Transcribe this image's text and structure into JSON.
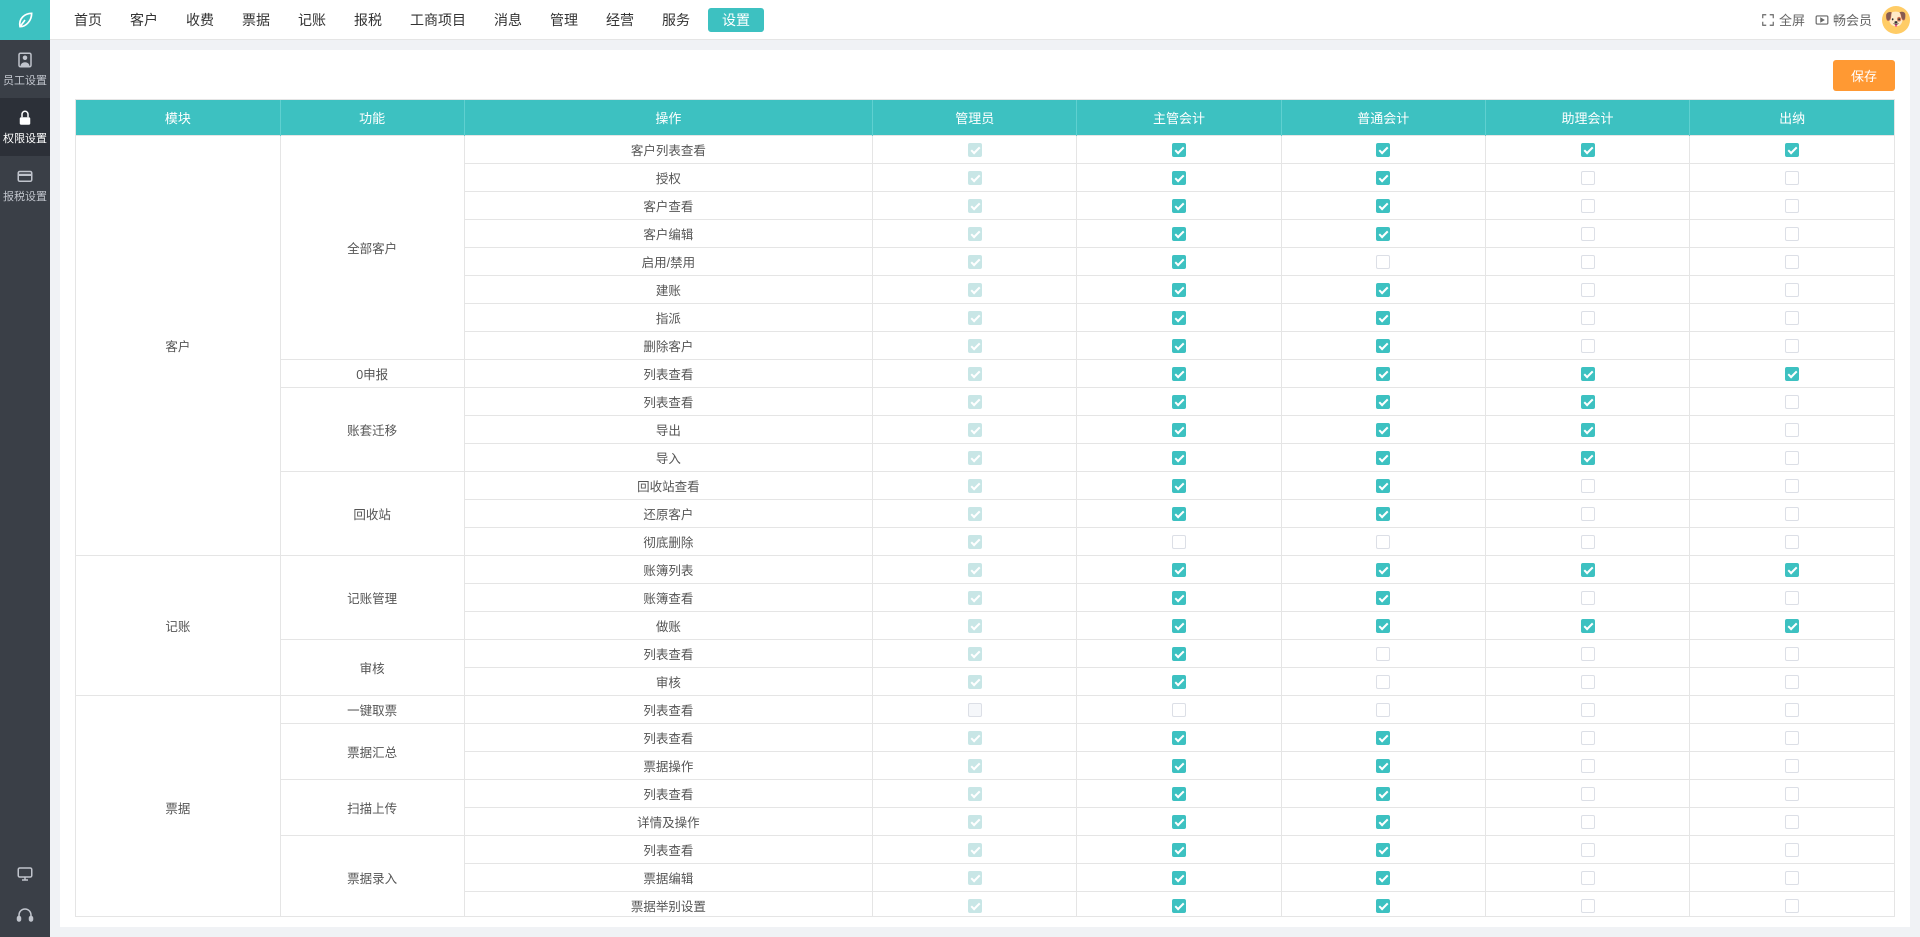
{
  "top_nav": {
    "menu": [
      "首页",
      "客户",
      "收费",
      "票据",
      "记账",
      "报税",
      "工商项目",
      "消息",
      "管理",
      "经营",
      "服务",
      "设置"
    ],
    "active_index": 11,
    "fullscreen": "全屏",
    "member": "畅会员"
  },
  "sidebar": {
    "items": [
      {
        "label": "员工设置",
        "icon": "user"
      },
      {
        "label": "权限设置",
        "icon": "lock"
      },
      {
        "label": "报税设置",
        "icon": "card"
      }
    ],
    "active_index": 1
  },
  "toolbar": {
    "save": "保存"
  },
  "table": {
    "headers": [
      "模块",
      "功能",
      "操作",
      "管理员",
      "主管会计",
      "普通会计",
      "助理会计",
      "出纳"
    ],
    "modules": [
      {
        "name": "客户",
        "funcs": [
          {
            "name": "全部客户",
            "ops": [
              {
                "name": "客户列表查看",
                "roles": [
                  "cd",
                  "c",
                  "c",
                  "c",
                  "c"
                ]
              },
              {
                "name": "授权",
                "roles": [
                  "cd",
                  "c",
                  "c",
                  "e",
                  "e"
                ]
              },
              {
                "name": "客户查看",
                "roles": [
                  "cd",
                  "c",
                  "c",
                  "e",
                  "e"
                ]
              },
              {
                "name": "客户编辑",
                "roles": [
                  "cd",
                  "c",
                  "c",
                  "e",
                  "e"
                ]
              },
              {
                "name": "启用/禁用",
                "roles": [
                  "cd",
                  "c",
                  "e",
                  "e",
                  "e"
                ]
              },
              {
                "name": "建账",
                "roles": [
                  "cd",
                  "c",
                  "c",
                  "e",
                  "e"
                ]
              },
              {
                "name": "指派",
                "roles": [
                  "cd",
                  "c",
                  "c",
                  "e",
                  "e"
                ]
              },
              {
                "name": "删除客户",
                "roles": [
                  "cd",
                  "c",
                  "c",
                  "e",
                  "e"
                ]
              }
            ]
          },
          {
            "name": "0申报",
            "ops": [
              {
                "name": "列表查看",
                "roles": [
                  "cd",
                  "c",
                  "c",
                  "c",
                  "c"
                ]
              }
            ]
          },
          {
            "name": "账套迁移",
            "ops": [
              {
                "name": "列表查看",
                "roles": [
                  "cd",
                  "c",
                  "c",
                  "c",
                  "e"
                ]
              },
              {
                "name": "导出",
                "roles": [
                  "cd",
                  "c",
                  "c",
                  "c",
                  "e"
                ]
              },
              {
                "name": "导入",
                "roles": [
                  "cd",
                  "c",
                  "c",
                  "c",
                  "e"
                ]
              }
            ]
          },
          {
            "name": "回收站",
            "ops": [
              {
                "name": "回收站查看",
                "roles": [
                  "cd",
                  "c",
                  "c",
                  "e",
                  "e"
                ]
              },
              {
                "name": "还原客户",
                "roles": [
                  "cd",
                  "c",
                  "c",
                  "e",
                  "e"
                ]
              },
              {
                "name": "彻底删除",
                "roles": [
                  "cd",
                  "e",
                  "e",
                  "e",
                  "e"
                ]
              }
            ]
          }
        ]
      },
      {
        "name": "记账",
        "funcs": [
          {
            "name": "记账管理",
            "ops": [
              {
                "name": "账簿列表",
                "roles": [
                  "cd",
                  "c",
                  "c",
                  "c",
                  "c"
                ]
              },
              {
                "name": "账簿查看",
                "roles": [
                  "cd",
                  "c",
                  "c",
                  "e",
                  "e"
                ]
              },
              {
                "name": "做账",
                "roles": [
                  "cd",
                  "c",
                  "c",
                  "c",
                  "c"
                ]
              }
            ]
          },
          {
            "name": "审核",
            "ops": [
              {
                "name": "列表查看",
                "roles": [
                  "cd",
                  "c",
                  "e",
                  "e",
                  "e"
                ]
              },
              {
                "name": "审核",
                "roles": [
                  "cd",
                  "c",
                  "e",
                  "e",
                  "e"
                ]
              }
            ]
          }
        ]
      },
      {
        "name": "票据",
        "funcs": [
          {
            "name": "一键取票",
            "ops": [
              {
                "name": "列表查看",
                "roles": [
                  "ed",
                  "e",
                  "e",
                  "e",
                  "e"
                ]
              }
            ]
          },
          {
            "name": "票据汇总",
            "ops": [
              {
                "name": "列表查看",
                "roles": [
                  "cd",
                  "c",
                  "c",
                  "e",
                  "e"
                ]
              },
              {
                "name": "票据操作",
                "roles": [
                  "cd",
                  "c",
                  "c",
                  "e",
                  "e"
                ]
              }
            ]
          },
          {
            "name": "扫描上传",
            "ops": [
              {
                "name": "列表查看",
                "roles": [
                  "cd",
                  "c",
                  "c",
                  "e",
                  "e"
                ]
              },
              {
                "name": "详情及操作",
                "roles": [
                  "cd",
                  "c",
                  "c",
                  "e",
                  "e"
                ]
              }
            ]
          },
          {
            "name": "票据录入",
            "ops": [
              {
                "name": "列表查看",
                "roles": [
                  "cd",
                  "c",
                  "c",
                  "e",
                  "e"
                ]
              },
              {
                "name": "票据编辑",
                "roles": [
                  "cd",
                  "c",
                  "c",
                  "e",
                  "e"
                ]
              },
              {
                "name": "票据举别设置",
                "roles": [
                  "cd",
                  "c",
                  "c",
                  "e",
                  "e"
                ]
              }
            ]
          }
        ]
      }
    ]
  },
  "colors": {
    "primary": "#3dc1c1",
    "sidebar_bg": "#3a3f47",
    "save_btn": "#ff9933"
  }
}
